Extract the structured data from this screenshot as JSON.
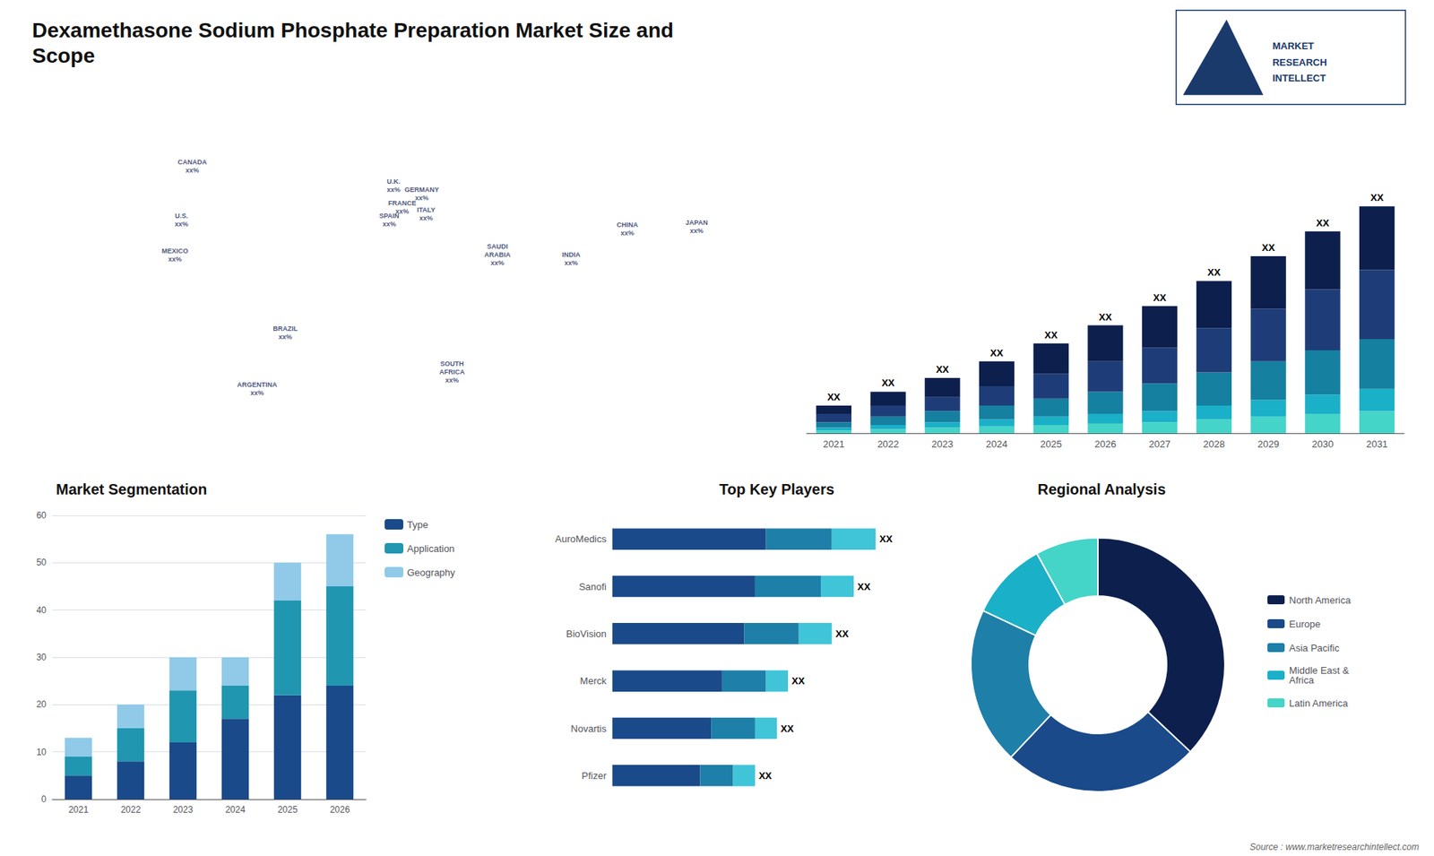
{
  "chart_data": [
    {
      "type": "scatter",
      "xlim": [
        -170,
        175
      ],
      "ylim": [
        -58,
        83
      ],
      "tick_labels": false,
      "annotations": [
        {
          "text": "CANADA\nxx%",
          "x": -95,
          "y": 65
        },
        {
          "text": "U.S.\nxx%",
          "x": -100,
          "y": 40
        },
        {
          "text": "MEXICO\nxx%",
          "x": -103,
          "y": 24
        },
        {
          "text": "BRAZIL\nxx%",
          "x": -52,
          "y": -12
        },
        {
          "text": "ARGENTINA\nxx%",
          "x": -65,
          "y": -38
        },
        {
          "text": "U.K.\nxx%",
          "x": -2,
          "y": 56
        },
        {
          "text": "FRANCE\nxx%",
          "x": 2,
          "y": 46
        },
        {
          "text": "GERMANY\nxx%",
          "x": 11,
          "y": 52
        },
        {
          "text": "SPAIN\nxx%",
          "x": -4,
          "y": 40
        },
        {
          "text": "ITALY\nxx%",
          "x": 13,
          "y": 43
        },
        {
          "text": "SAUDI\nARABIA\nxx%",
          "x": 46,
          "y": 24
        },
        {
          "text": "SOUTH\nAFRICA\nxx%",
          "x": 25,
          "y": -30
        },
        {
          "text": "CHINA\nxx%",
          "x": 106,
          "y": 36
        },
        {
          "text": "INDIA\nxx%",
          "x": 80,
          "y": 22
        },
        {
          "text": "JAPAN\nxx%",
          "x": 138,
          "y": 37
        }
      ]
    },
    {
      "type": "bar",
      "title": "Dexamethasone Sodium Phosphate Preparation Market Size and\nScope",
      "categories": [
        "2021",
        "2022",
        "2023",
        "2024",
        "2025",
        "2026",
        "2027",
        "2028",
        "2029",
        "2030",
        "2031"
      ],
      "stacked": true,
      "tick_labels": "x",
      "ylim": [
        0,
        110.7
      ],
      "series": [
        {
          "color": "#45d4c8",
          "values": [
            1.0,
            1.5,
            2.0,
            2.5,
            3.0,
            3.5,
            4.0,
            5.0,
            6.0,
            7.0,
            8.0
          ]
        },
        {
          "color": "#1ab0c8",
          "values": [
            1.0,
            1.5,
            2.0,
            2.5,
            3.0,
            3.5,
            4.0,
            5.0,
            6.0,
            7.0,
            8.0
          ]
        },
        {
          "color": "#1580a0",
          "values": [
            2.0,
            3.0,
            4.0,
            5.0,
            6.5,
            8.0,
            10.0,
            12.0,
            14.0,
            16.0,
            18.0
          ]
        },
        {
          "color": "#1e3d78",
          "values": [
            3.0,
            4.0,
            5.0,
            7.0,
            9.0,
            11.0,
            13.0,
            16.0,
            19.0,
            22.0,
            25.0
          ]
        },
        {
          "color": "#0d1f4c",
          "values": [
            3.0,
            5.0,
            7.0,
            9.0,
            11.0,
            13.0,
            15.0,
            17.0,
            19.0,
            21.0,
            23.0
          ]
        }
      ],
      "annotations": [
        {
          "category": "2021",
          "text": "XX"
        },
        {
          "category": "2022",
          "text": "XX"
        },
        {
          "category": "2023",
          "text": "XX"
        },
        {
          "category": "2024",
          "text": "XX"
        },
        {
          "category": "2025",
          "text": "XX"
        },
        {
          "category": "2026",
          "text": "XX"
        },
        {
          "category": "2027",
          "text": "XX"
        },
        {
          "category": "2028",
          "text": "XX"
        },
        {
          "category": "2029",
          "text": "XX"
        },
        {
          "category": "2030",
          "text": "XX"
        },
        {
          "category": "2031",
          "text": "XX"
        },
        {
          "text": "MARKET"
        },
        {
          "text": "RESEARCH"
        },
        {
          "text": "INTELLECT"
        }
      ]
    },
    {
      "type": "bar",
      "title": "Market Segmentation",
      "categories": [
        "2021",
        "2022",
        "2023",
        "2024",
        "2025",
        "2026"
      ],
      "stacked": true,
      "ylim": [
        0,
        60
      ],
      "yticks": [
        0,
        10,
        20,
        30,
        40,
        50,
        60
      ],
      "grid": true,
      "legend": "right",
      "series": [
        {
          "name": "Type",
          "color": "#1a4a8a",
          "values": [
            5,
            8,
            12,
            17,
            22,
            24
          ]
        },
        {
          "name": "Application",
          "color": "#2196b0",
          "values": [
            4,
            7,
            11,
            7,
            20,
            21
          ]
        },
        {
          "name": "Geography",
          "color": "#90cae8",
          "values": [
            4,
            5,
            7,
            6,
            8,
            11
          ]
        }
      ]
    },
    {
      "type": "bar",
      "orientation": "horizontal",
      "title": "Top Key Players",
      "categories": [
        "AuroMedics",
        "Sanofi",
        "BioVision",
        "Merck",
        "Novartis",
        "Pfizer"
      ],
      "stacked": true,
      "tick_labels": "y",
      "xlim": [
        0,
        14.64
      ],
      "series": [
        {
          "color": "#1a4a8a",
          "values": [
            7.0,
            6.5,
            6.0,
            5.0,
            4.5,
            4.0
          ]
        },
        {
          "color": "#1e7fa8",
          "values": [
            3.0,
            3.0,
            2.5,
            2.0,
            2.0,
            1.5
          ]
        },
        {
          "color": "#40c4d8",
          "values": [
            2.0,
            1.5,
            1.5,
            1.0,
            1.0,
            1.0
          ]
        }
      ],
      "annotations": [
        {
          "category": "AuroMedics",
          "text": "XX"
        },
        {
          "category": "Sanofi",
          "text": "XX"
        },
        {
          "category": "BioVision",
          "text": "XX"
        },
        {
          "category": "Merck",
          "text": "XX"
        },
        {
          "category": "Novartis",
          "text": "XX"
        },
        {
          "category": "Pfizer",
          "text": "XX"
        }
      ]
    },
    {
      "type": "pie",
      "title": "Regional Analysis",
      "categories": [
        "Latin America",
        "Middle East &\nAfrica",
        "Asia Pacific",
        "Europe",
        "North America"
      ],
      "values": [
        8,
        10,
        20,
        25,
        37
      ],
      "colors": [
        "#45d4c8",
        "#1ab0c8",
        "#1e7fa8",
        "#1a4a8a",
        "#0d1f4c"
      ],
      "legend": "right",
      "annotations": [
        {
          "text": "Source : www.marketresearchintellect.com"
        }
      ]
    }
  ]
}
